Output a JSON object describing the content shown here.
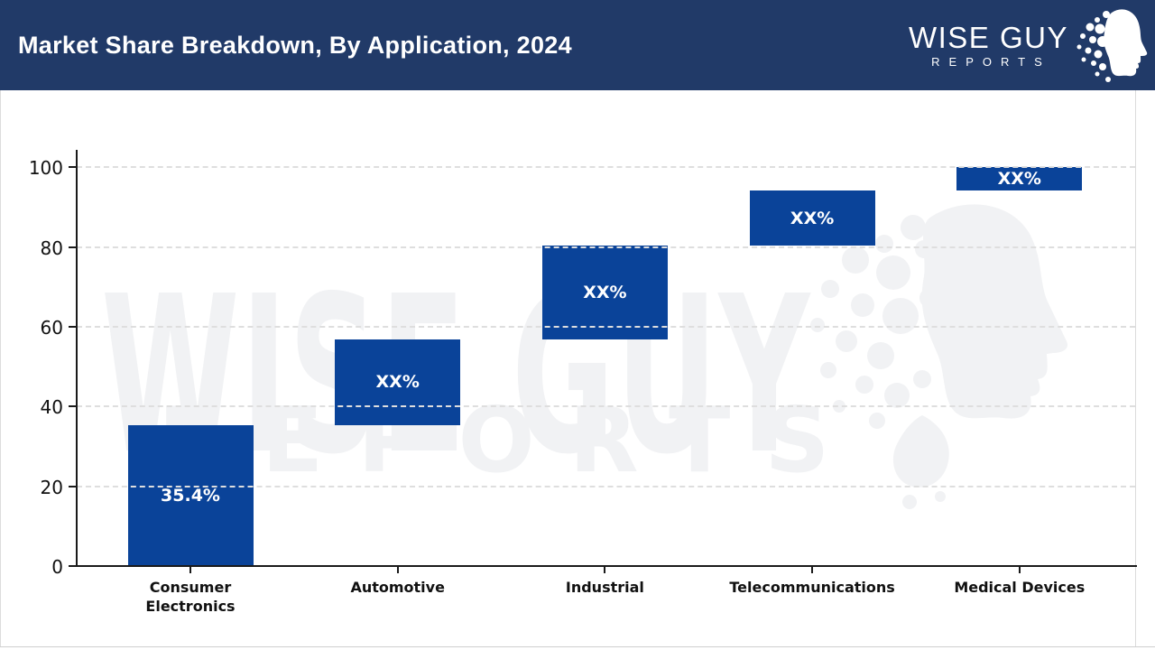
{
  "header": {
    "title": "Market Share Breakdown, By Application, 2024",
    "brand_line1": "WISE GUY",
    "brand_line2": "REPORTS",
    "bg_color": "#213a68"
  },
  "watermark": {
    "line1": "WISE GUY",
    "line2": "REPORTS"
  },
  "chart_data": {
    "type": "bar",
    "subtype": "waterfall",
    "title": "Market Share Breakdown, By Application, 2024",
    "xlabel": "",
    "ylabel": "",
    "ylim": [
      0,
      100
    ],
    "yticks": [
      0,
      20,
      40,
      60,
      80,
      100
    ],
    "grid": "horizontal-dashed",
    "legend": "none",
    "bar_color": "#0a4399",
    "bar_label_color": "#ffffff",
    "categories": [
      "Consumer\nElectronics",
      "Automotive",
      "Industrial",
      "Telecommunications",
      "Medical Devices"
    ],
    "segments": [
      {
        "category": "Consumer Electronics",
        "start": 0,
        "end": 35.4,
        "value": 35.4,
        "label": "35.4%"
      },
      {
        "category": "Automotive",
        "start": 35.4,
        "end": 56.8,
        "value": 21.4,
        "label": "XX%"
      },
      {
        "category": "Industrial",
        "start": 56.8,
        "end": 80.3,
        "value": 23.5,
        "label": "XX%"
      },
      {
        "category": "Telecommunications",
        "start": 80.3,
        "end": 94.2,
        "value": 13.9,
        "label": "XX%"
      },
      {
        "category": "Medical Devices",
        "start": 94.2,
        "end": 100,
        "value": 5.8,
        "label": "XX%"
      }
    ]
  }
}
